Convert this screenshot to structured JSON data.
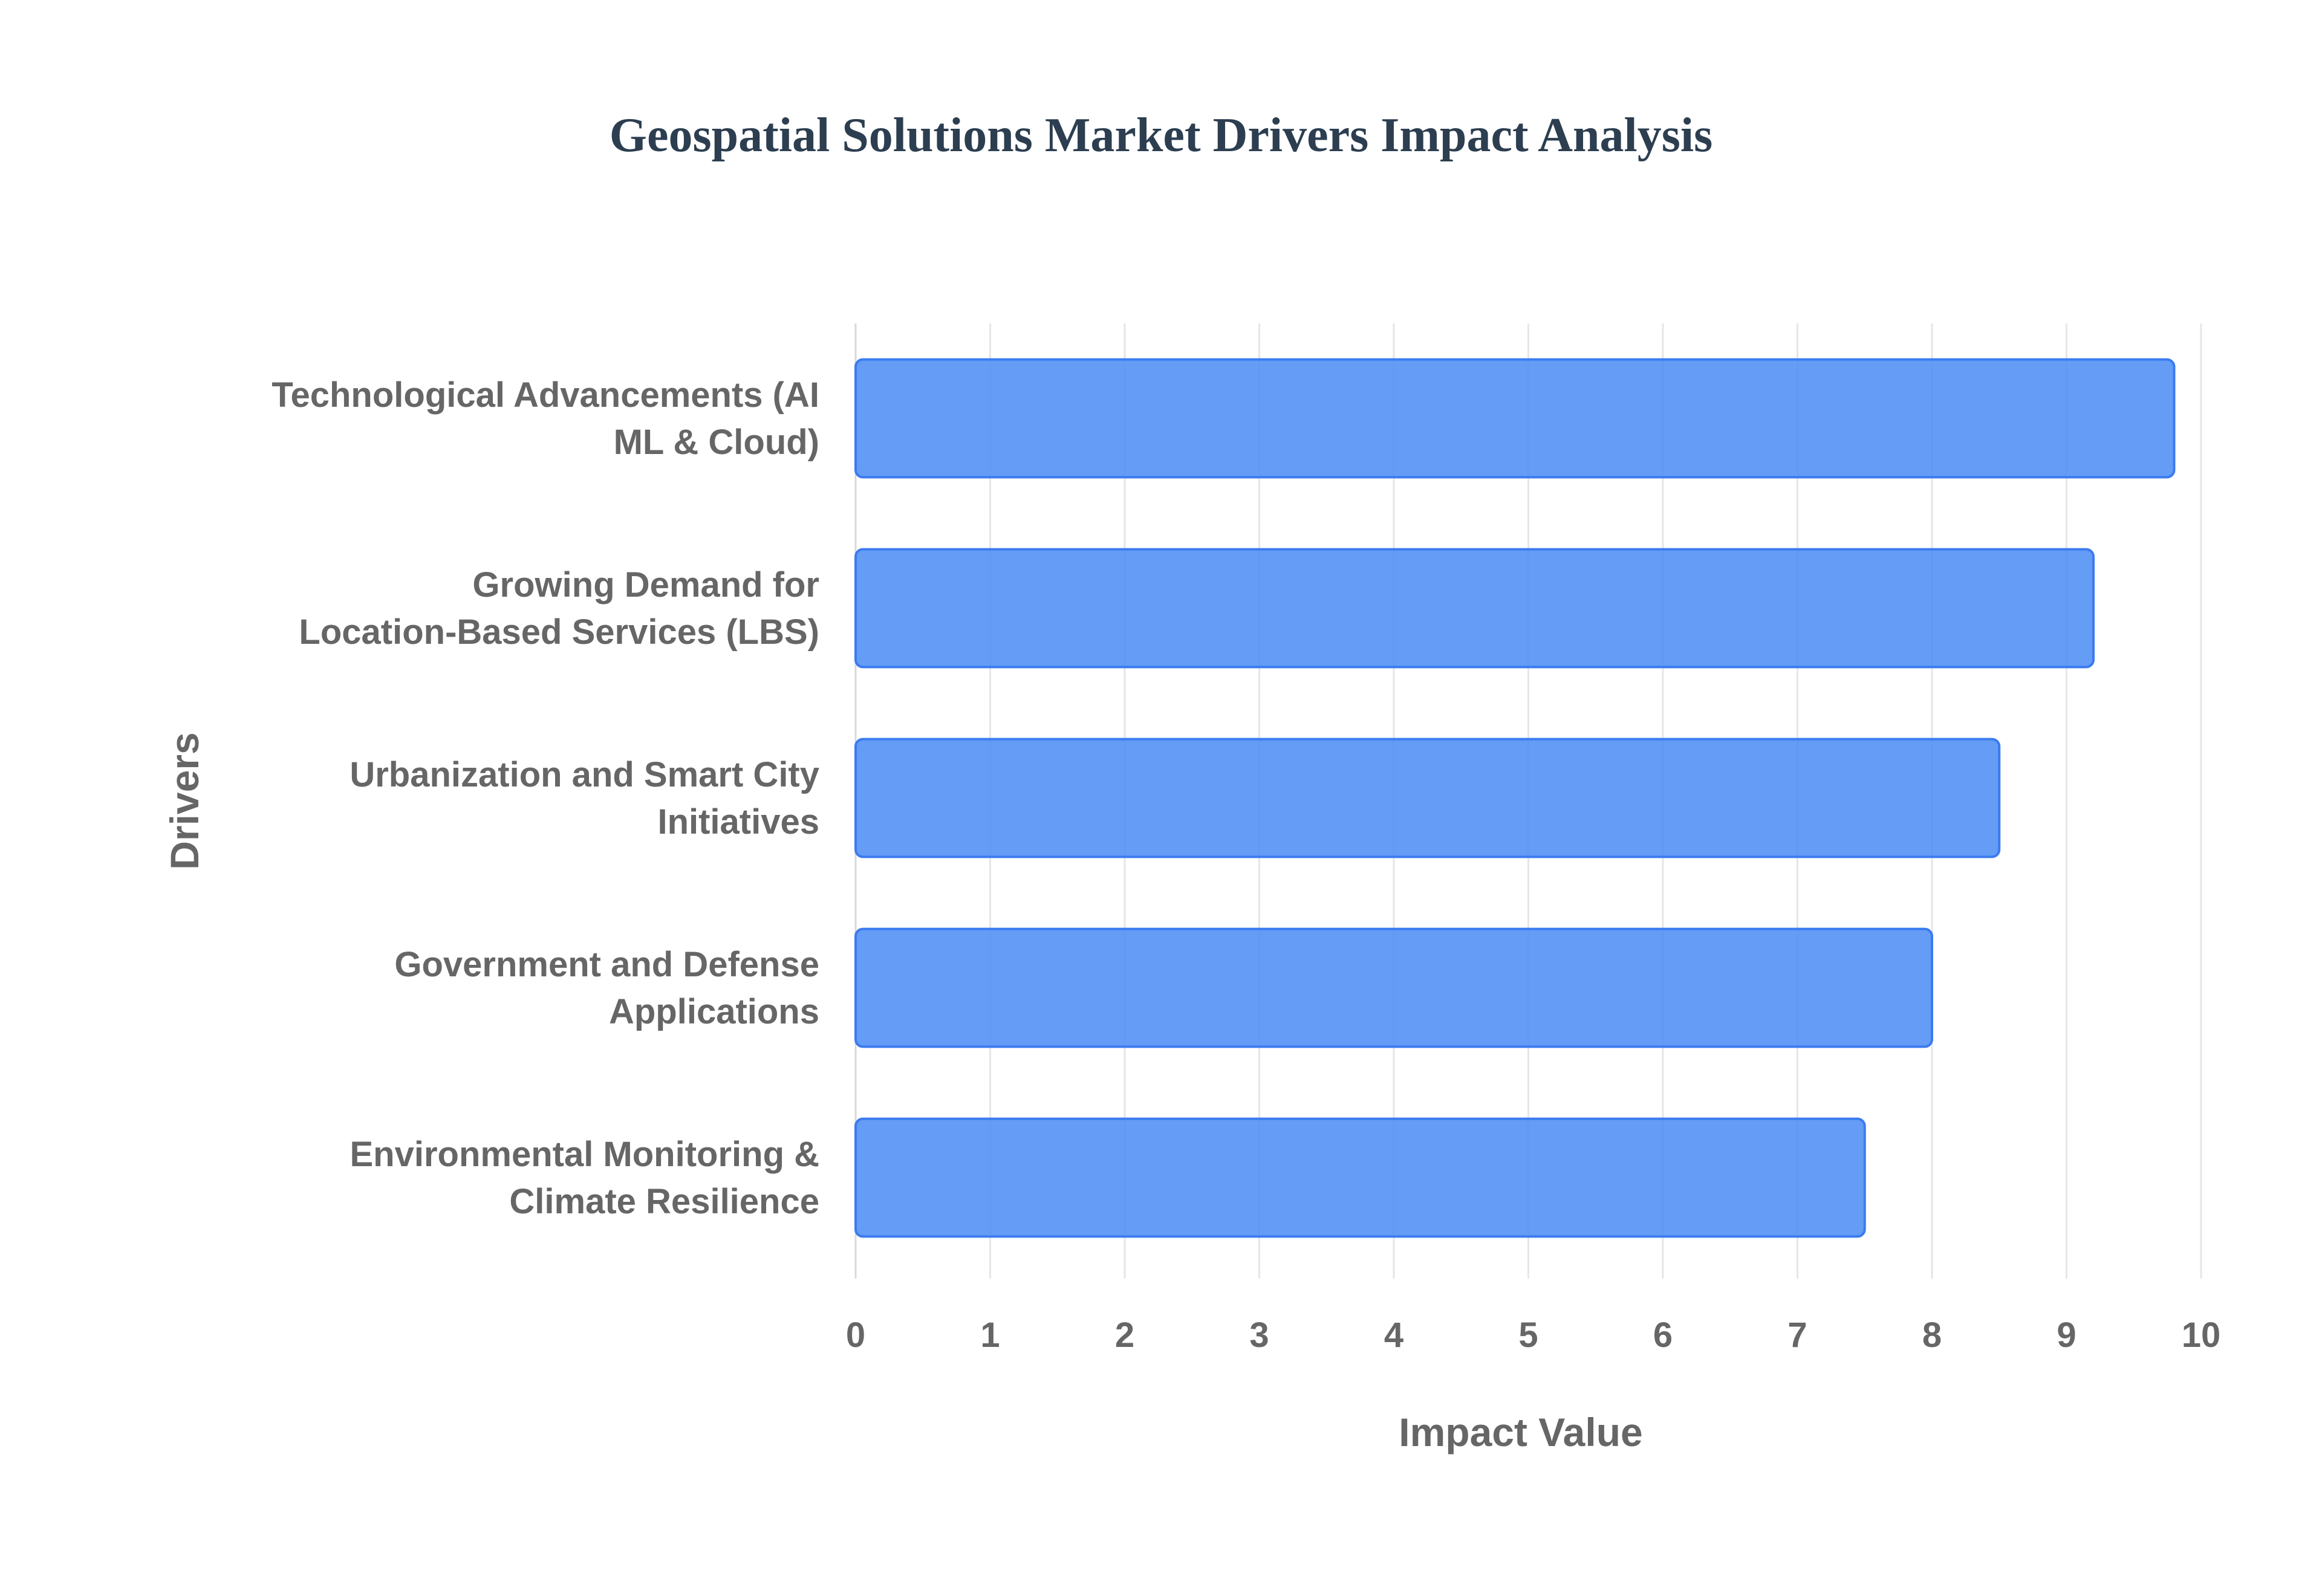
{
  "chart_data": {
    "type": "bar",
    "orientation": "horizontal",
    "title": "Geospatial Solutions Market Drivers Impact Analysis",
    "xlabel": "Impact Value",
    "ylabel": "Drivers",
    "categories": [
      [
        "Technological Advancements (AI",
        "ML & Cloud)"
      ],
      [
        "Growing Demand for",
        "Location-Based Services (LBS)"
      ],
      [
        "Urbanization and Smart City",
        "Initiatives"
      ],
      [
        "Government and Defense",
        "Applications"
      ],
      [
        "Environmental Monitoring &",
        "Climate Resilience"
      ]
    ],
    "values": [
      9.8,
      9.2,
      8.5,
      8.0,
      7.5
    ],
    "xlim": [
      0,
      10
    ],
    "xticks": [
      0,
      1,
      2,
      3,
      4,
      5,
      6,
      7,
      8,
      9,
      10
    ],
    "grid": true,
    "legend": "none",
    "colors": {
      "bar_fill": "#4f8ef5",
      "bar_stroke": "#3b7bf0",
      "title": "#2c3e50",
      "text": "#666666"
    }
  }
}
